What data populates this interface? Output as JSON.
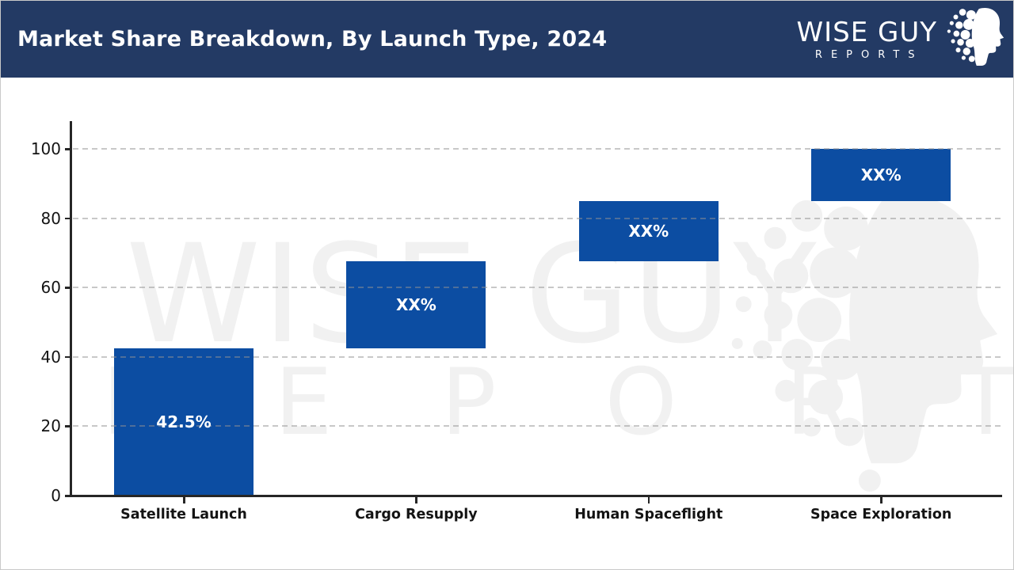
{
  "header": {
    "title": "Market Share Breakdown, By Launch Type, 2024",
    "logo": {
      "line1": "WISE GUY",
      "line2": "REPORTS"
    }
  },
  "watermark": {
    "line1": "WISE GUY",
    "line2": "R E P O R T S"
  },
  "colors": {
    "header_bg": "#233A64",
    "bar": "#0C4DA2",
    "grid": "#d9d9d9",
    "axis": "#262626",
    "value_label": "#ffffff",
    "watermark": "#f1f1f1"
  },
  "chart_data": {
    "type": "bar",
    "subtype": "waterfall",
    "title": "Market Share Breakdown, By Launch Type, 2024",
    "categories": [
      "Satellite Launch",
      "Cargo Resupply",
      "Human Spaceflight",
      "Space Exploration"
    ],
    "segments": [
      {
        "category": "Satellite Launch",
        "start": 0,
        "end": 42.5,
        "label": "42.5%"
      },
      {
        "category": "Cargo Resupply",
        "start": 42.5,
        "end": 67.5,
        "label": "XX%"
      },
      {
        "category": "Human Spaceflight",
        "start": 67.5,
        "end": 85,
        "label": "XX%"
      },
      {
        "category": "Space Exploration",
        "start": 85,
        "end": 100,
        "label": "XX%"
      }
    ],
    "ylim": [
      0,
      108
    ],
    "yticks": [
      0,
      20,
      40,
      60,
      80,
      100
    ],
    "xlabel": "",
    "ylabel": "",
    "grid": {
      "axis": "y",
      "style": "dashed",
      "drawn_over_bars": true
    },
    "legend": "none",
    "bar_color": "#0C4DA2",
    "value_label_color": "#ffffff"
  }
}
